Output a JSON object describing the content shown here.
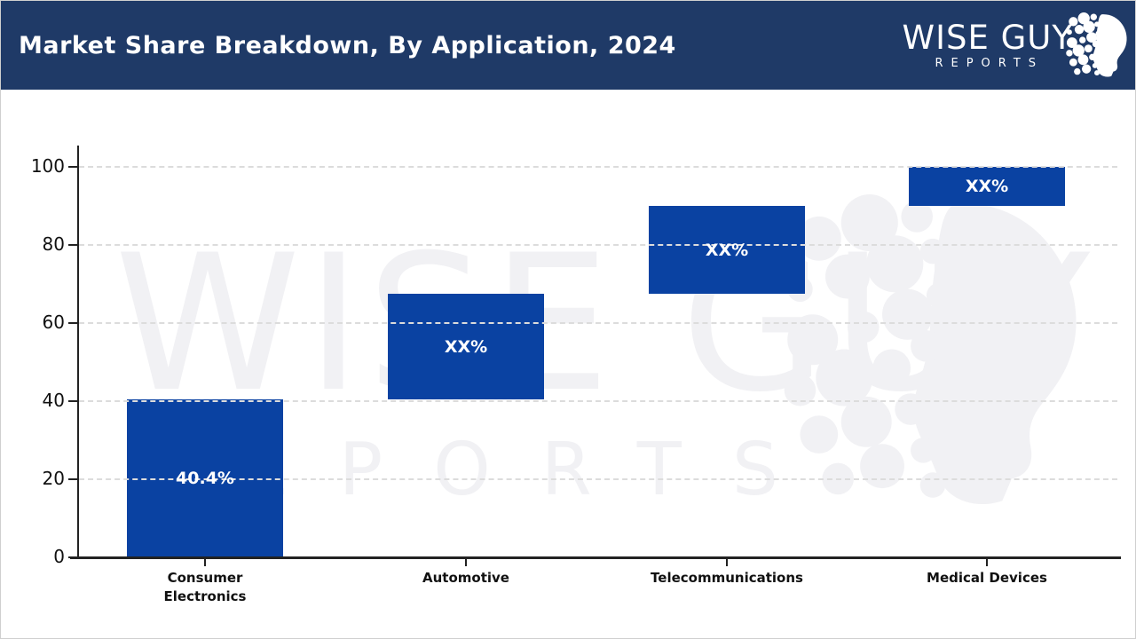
{
  "header": {
    "title": "Market Share Breakdown, By Application, 2024",
    "logo": {
      "line1": "WISE GUY",
      "line2": "REPORTS"
    }
  },
  "watermark": {
    "line1": "WISE GUY",
    "line2": "REPORTS"
  },
  "colors": {
    "header_bg": "#1f3a67",
    "bar": "#0a42a2",
    "axis": "#222222",
    "grid": "#dcdcdc",
    "watermark": "#f1f1f4",
    "bar_label_text": "#ffffff",
    "tick_text": "#111111",
    "page_border": "#cfcfcf"
  },
  "chart_data": {
    "type": "bar",
    "subtype": "waterfall",
    "title": "Market Share Breakdown, By Application, 2024",
    "categories": [
      "Consumer\nElectronics",
      "Automotive",
      "Telecommunications",
      "Medical Devices"
    ],
    "segments": [
      {
        "category": "Consumer Electronics",
        "label": "40.4%",
        "start": 0,
        "end": 40.4
      },
      {
        "category": "Automotive",
        "label": "XX%",
        "start": 40.4,
        "end": 67.5
      },
      {
        "category": "Telecommunications",
        "label": "XX%",
        "start": 67.5,
        "end": 90
      },
      {
        "category": "Medical Devices",
        "label": "XX%",
        "start": 90,
        "end": 100
      }
    ],
    "yticks": [
      0,
      20,
      40,
      60,
      80,
      100
    ],
    "ylim": [
      0,
      105
    ],
    "xlabel": "",
    "ylabel": "",
    "grid": "horizontal-dashed",
    "legend": "none"
  }
}
